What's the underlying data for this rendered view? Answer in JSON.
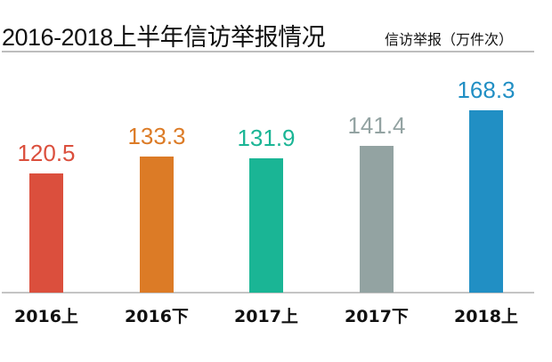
{
  "header": {
    "title": "2016-2018上半年信访举报情况",
    "unit_label": "信访举报（万件次）"
  },
  "chart_data": {
    "type": "bar",
    "title": "2016-2018上半年信访举报情况",
    "xlabel": "",
    "ylabel": "信访举报（万件次）",
    "categories": [
      "2016上",
      "2016下",
      "2017上",
      "2017下",
      "2018上"
    ],
    "values": [
      120.5,
      133.3,
      131.9,
      141.4,
      168.3
    ],
    "value_labels": [
      "120.5",
      "133.3",
      "131.9",
      "141.4",
      "168.3"
    ],
    "colors": [
      "#db4f3d",
      "#dc7b26",
      "#1ab595",
      "#93a3a2",
      "#218fc4"
    ],
    "grid": false,
    "legend": "none",
    "data_labels": true
  }
}
